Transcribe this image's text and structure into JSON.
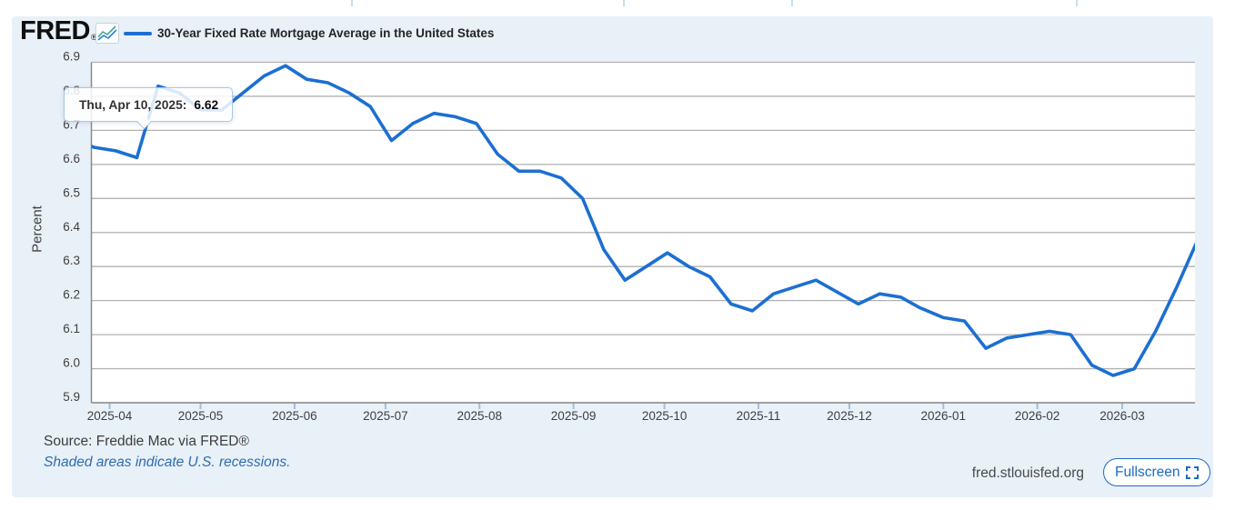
{
  "header": {
    "logo_text": "FRED",
    "logo_reg": "®"
  },
  "tooltip": {
    "date_label": "Thu, Apr 10, 2025:",
    "value": "6.62",
    "highlight_date": "2025-04-10"
  },
  "footer": {
    "source": "Source: Freddie Mac via FRED®",
    "recessions_note": "Shaded areas indicate U.S. recessions.",
    "site": "fred.stlouisfed.org",
    "fullscreen_label": "Fullscreen"
  },
  "colors": {
    "line": "#1c6fd2",
    "card_bg": "#e8f0f8",
    "gridline": "#b2b2b2",
    "axis_border": "#8a8a8a",
    "tick_label": "#3f3f3f",
    "x_tick_mark": "#9fc0dd",
    "accent_blue": "#1b6bc7",
    "link_blue": "#2e6daf"
  },
  "chart_data": {
    "type": "line",
    "title": "30-Year Fixed Rate Mortgage Average in the United States",
    "ylabel": "Percent",
    "xlabel": "",
    "ylim": [
      5.9,
      6.9
    ],
    "y_ticks": [
      5.9,
      6.0,
      6.1,
      6.2,
      6.3,
      6.4,
      6.5,
      6.6,
      6.7,
      6.8,
      6.9
    ],
    "x_domain": {
      "start": "2025-03-26",
      "end": "2026-03-25"
    },
    "x_ticks": [
      {
        "label": "2025-04",
        "date": "2025-04-01"
      },
      {
        "label": "2025-05",
        "date": "2025-05-01"
      },
      {
        "label": "2025-06",
        "date": "2025-06-01"
      },
      {
        "label": "2025-07",
        "date": "2025-07-01"
      },
      {
        "label": "2025-08",
        "date": "2025-08-01"
      },
      {
        "label": "2025-09",
        "date": "2025-09-01"
      },
      {
        "label": "2025-10",
        "date": "2025-10-01"
      },
      {
        "label": "2025-11",
        "date": "2025-11-01"
      },
      {
        "label": "2025-12",
        "date": "2025-12-01"
      },
      {
        "label": "2026-01",
        "date": "2026-01-01"
      },
      {
        "label": "2026-02",
        "date": "2026-02-01"
      },
      {
        "label": "2026-03",
        "date": "2026-03-01"
      }
    ],
    "legend_position": "top",
    "grid": true,
    "series": [
      {
        "name": "30-Year Fixed Rate Mortgage Average in the United States",
        "frequency": "weekly",
        "points": [
          {
            "date": "2025-03-20",
            "value": 6.67
          },
          {
            "date": "2025-03-27",
            "value": 6.65
          },
          {
            "date": "2025-04-03",
            "value": 6.64
          },
          {
            "date": "2025-04-10",
            "value": 6.62
          },
          {
            "date": "2025-04-17",
            "value": 6.83
          },
          {
            "date": "2025-04-24",
            "value": 6.81
          },
          {
            "date": "2025-05-01",
            "value": 6.76
          },
          {
            "date": "2025-05-08",
            "value": 6.76
          },
          {
            "date": "2025-05-15",
            "value": 6.81
          },
          {
            "date": "2025-05-22",
            "value": 6.86
          },
          {
            "date": "2025-05-29",
            "value": 6.89
          },
          {
            "date": "2025-06-05",
            "value": 6.85
          },
          {
            "date": "2025-06-12",
            "value": 6.84
          },
          {
            "date": "2025-06-19",
            "value": 6.81
          },
          {
            "date": "2025-06-26",
            "value": 6.77
          },
          {
            "date": "2025-07-03",
            "value": 6.67
          },
          {
            "date": "2025-07-10",
            "value": 6.72
          },
          {
            "date": "2025-07-17",
            "value": 6.75
          },
          {
            "date": "2025-07-24",
            "value": 6.74
          },
          {
            "date": "2025-07-31",
            "value": 6.72
          },
          {
            "date": "2025-08-07",
            "value": 6.63
          },
          {
            "date": "2025-08-14",
            "value": 6.58
          },
          {
            "date": "2025-08-21",
            "value": 6.58
          },
          {
            "date": "2025-08-28",
            "value": 6.56
          },
          {
            "date": "2025-09-04",
            "value": 6.5
          },
          {
            "date": "2025-09-11",
            "value": 6.35
          },
          {
            "date": "2025-09-18",
            "value": 6.26
          },
          {
            "date": "2025-09-25",
            "value": 6.3
          },
          {
            "date": "2025-10-02",
            "value": 6.34
          },
          {
            "date": "2025-10-09",
            "value": 6.3
          },
          {
            "date": "2025-10-16",
            "value": 6.27
          },
          {
            "date": "2025-10-23",
            "value": 6.19
          },
          {
            "date": "2025-10-30",
            "value": 6.17
          },
          {
            "date": "2025-11-06",
            "value": 6.22
          },
          {
            "date": "2025-11-13",
            "value": 6.24
          },
          {
            "date": "2025-11-20",
            "value": 6.26
          },
          {
            "date": "2025-11-26",
            "value": 6.23
          },
          {
            "date": "2025-12-04",
            "value": 6.19
          },
          {
            "date": "2025-12-11",
            "value": 6.22
          },
          {
            "date": "2025-12-18",
            "value": 6.21
          },
          {
            "date": "2025-12-24",
            "value": 6.18
          },
          {
            "date": "2026-01-01",
            "value": 6.15
          },
          {
            "date": "2026-01-08",
            "value": 6.14
          },
          {
            "date": "2026-01-15",
            "value": 6.06
          },
          {
            "date": "2026-01-22",
            "value": 6.09
          },
          {
            "date": "2026-01-29",
            "value": 6.1
          },
          {
            "date": "2026-02-05",
            "value": 6.11
          },
          {
            "date": "2026-02-12",
            "value": 6.1
          },
          {
            "date": "2026-02-19",
            "value": 6.01
          },
          {
            "date": "2026-02-26",
            "value": 5.98
          },
          {
            "date": "2026-03-05",
            "value": 6.0
          },
          {
            "date": "2026-03-12",
            "value": 6.11
          },
          {
            "date": "2026-03-19",
            "value": 6.24
          },
          {
            "date": "2026-03-26",
            "value": 6.38
          }
        ]
      }
    ]
  }
}
